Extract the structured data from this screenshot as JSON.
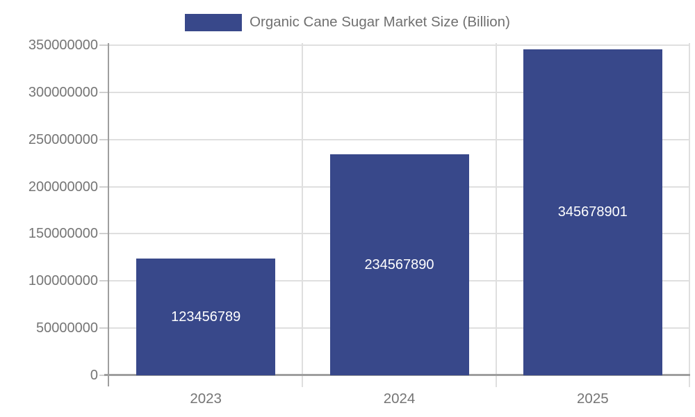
{
  "chart_data": {
    "type": "bar",
    "title": "Organic Cane Sugar Market Size (Billion)",
    "legend": {
      "label": "Organic Cane Sugar Market Size (Billion)",
      "position": "top-center"
    },
    "categories": [
      "2023",
      "2024",
      "2025"
    ],
    "values": [
      123456789,
      234567890,
      345678901
    ],
    "bar_value_labels": [
      "123456789",
      "234567890",
      "345678901"
    ],
    "ylim": [
      0,
      350000000
    ],
    "yticks": [
      0,
      50000000,
      100000000,
      150000000,
      200000000,
      250000000,
      300000000,
      350000000
    ],
    "ytick_labels": [
      "0",
      "50000000",
      "100000000",
      "150000000",
      "200000000",
      "250000000",
      "300000000",
      "350000000"
    ],
    "xlabel": "",
    "ylabel": "",
    "grid": true,
    "colors": {
      "bar": "#38488A",
      "bar_label_text": "#FFFFFF",
      "gridline": "#DFDFDF",
      "tick_dash": "#CFCFCF",
      "axis_line": "#9E9E9E",
      "tick_label_text": "#757575",
      "legend_text": "#707070"
    }
  }
}
